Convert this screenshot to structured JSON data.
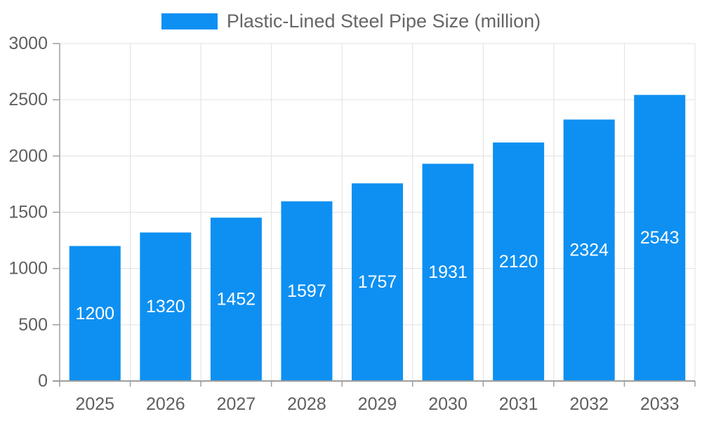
{
  "legend": {
    "label": "Plastic-Lined Steel Pipe Size (million)"
  },
  "colors": {
    "bar": "#0e90f2",
    "grid": "#e0e0e0",
    "axis_line": "#9e9e9e",
    "axis_text": "#5f5f5f",
    "legend_text": "#666666",
    "bar_label": "#ffffff",
    "background": "#ffffff"
  },
  "chart_data": {
    "type": "bar",
    "title": "Plastic-Lined Steel Pipe Size (million)",
    "categories": [
      "2025",
      "2026",
      "2027",
      "2028",
      "2029",
      "2030",
      "2031",
      "2032",
      "2033"
    ],
    "values": [
      1200,
      1320,
      1452,
      1597,
      1757,
      1931,
      2120,
      2324,
      2543
    ],
    "xlabel": "",
    "ylabel": "",
    "ylim": [
      0,
      3000
    ],
    "y_ticks": [
      0,
      500,
      1000,
      1500,
      2000,
      2500,
      3000
    ],
    "grid": true,
    "legend_position": "top-center",
    "value_label_position": "inside-center",
    "series_name": "Plastic-Lined Steel Pipe Size (million)"
  }
}
